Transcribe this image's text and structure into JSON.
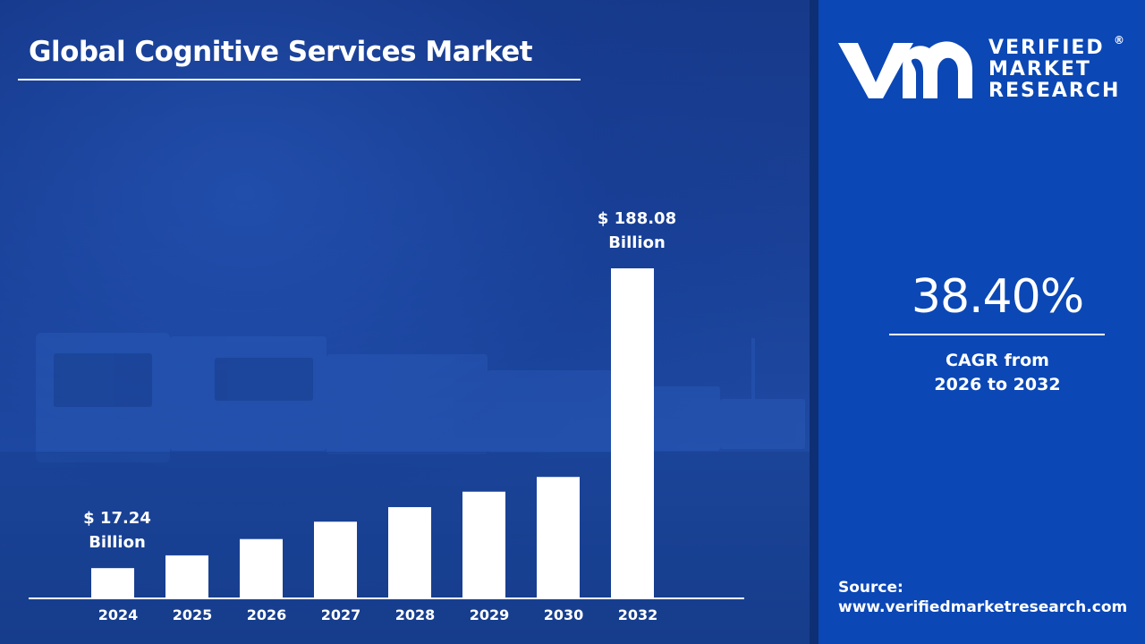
{
  "header": {
    "title": "Global Cognitive Services Market"
  },
  "brand": {
    "line1": "VERIFIED",
    "line2": "MARKET",
    "line3": "RESEARCH",
    "registered_mark": "®",
    "logo_icon": "vmr-logo-icon"
  },
  "cagr": {
    "value": "38.40%",
    "label_line1": "CAGR from",
    "label_line2": "2026 to 2032"
  },
  "source": {
    "label": "Source:",
    "url": "www.verifiedmarketresearch.com"
  },
  "colors": {
    "left_panel": "#1a4299",
    "right_panel": "#0b47b5",
    "bars": "#ffffff",
    "text": "#ffffff"
  },
  "chart_data": {
    "type": "bar",
    "title": "Global Cognitive Services Market",
    "xlabel": "",
    "ylabel": "",
    "unit": "USD Billion",
    "categories": [
      "2024",
      "2025",
      "2026",
      "2027",
      "2028",
      "2029",
      "2030",
      "2032"
    ],
    "values": [
      17.24,
      24.5,
      33.8,
      43.7,
      52.0,
      60.8,
      69.2,
      188.08
    ],
    "ylim": [
      0,
      200
    ],
    "grid": false,
    "legend": "none",
    "annotations": [
      {
        "category": "2024",
        "line1": "$ 17.24",
        "line2": "Billion"
      },
      {
        "category": "2032",
        "line1": "$ 188.08",
        "line2": "Billion"
      }
    ]
  }
}
